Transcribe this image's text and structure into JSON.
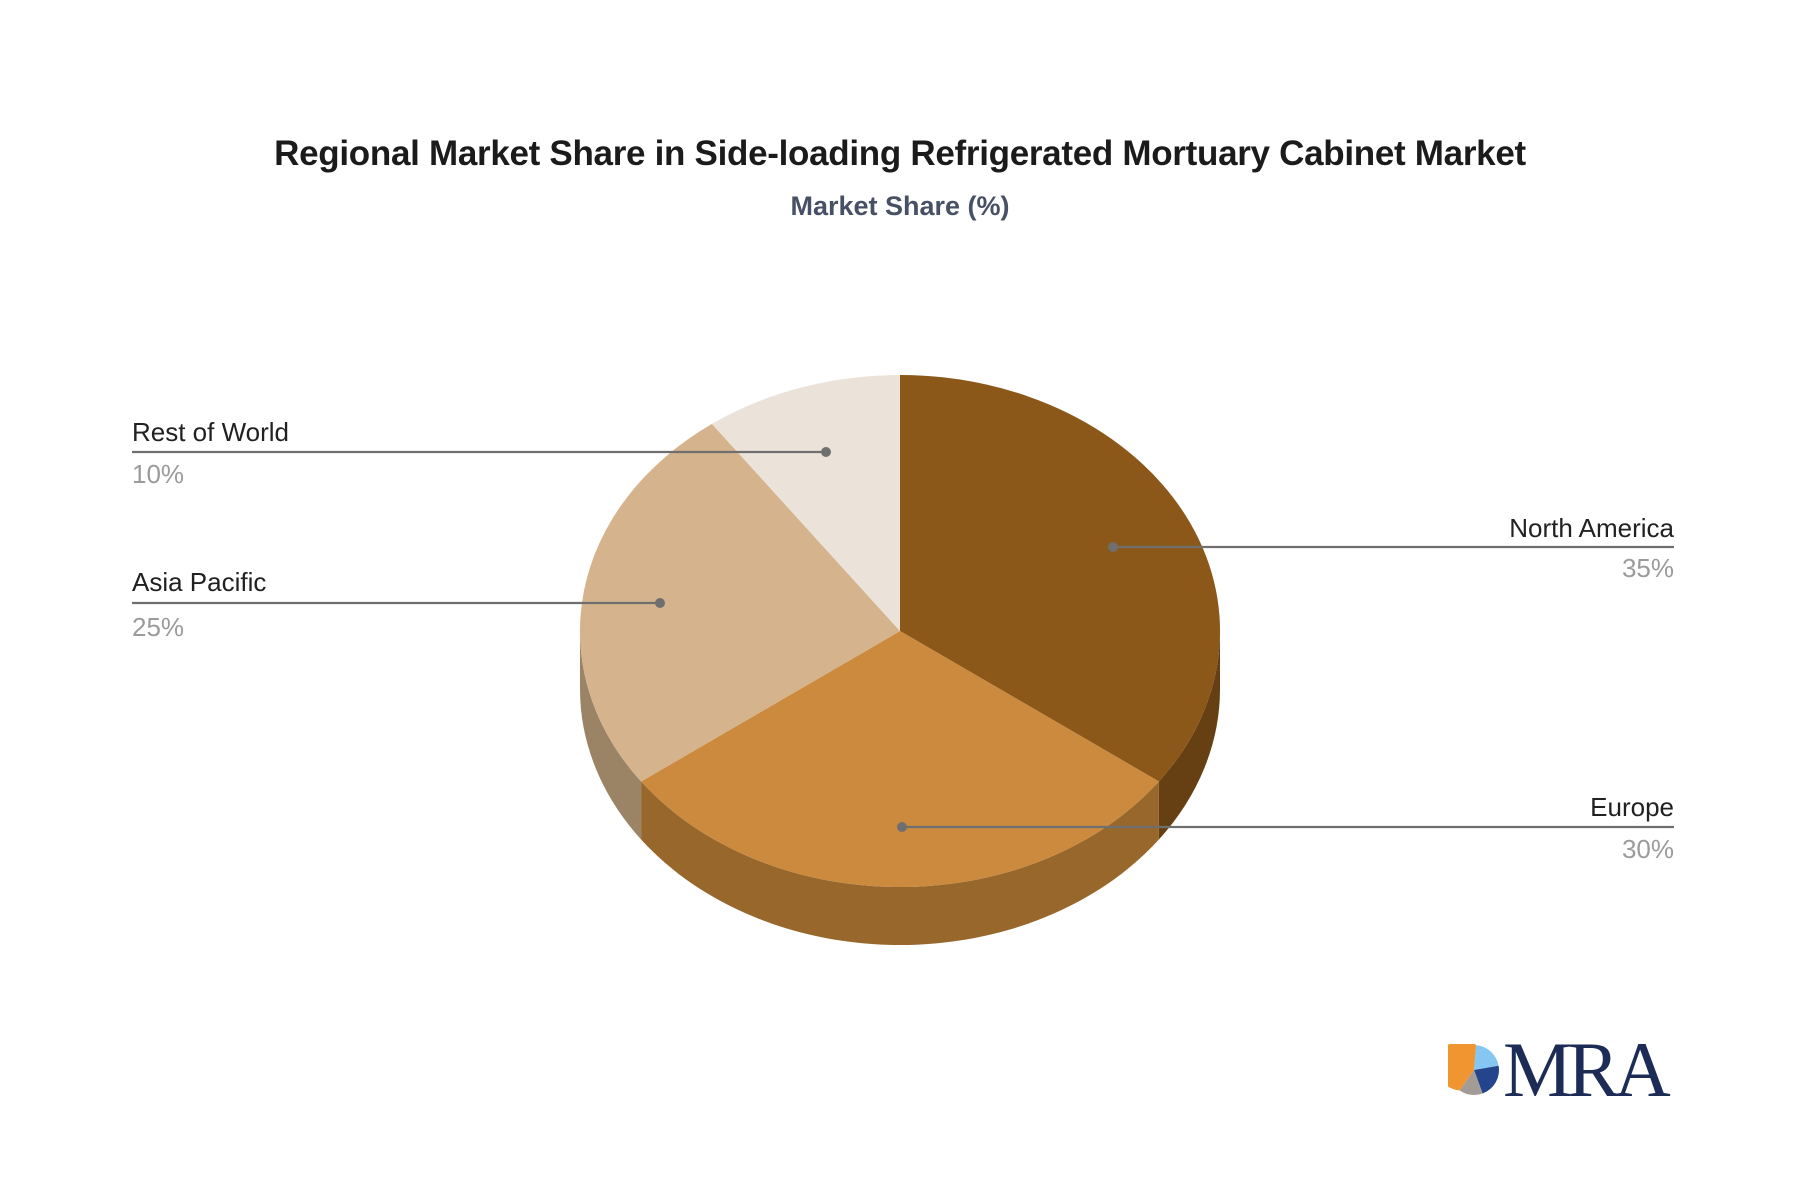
{
  "title": "Regional Market Share in Side-loading Refrigerated Mortuary Cabinet Market",
  "subtitle": "Market Share (%)",
  "chart_data": {
    "type": "pie",
    "style": "3d-extruded",
    "title": "Regional Market Share in Side-loading Refrigerated Mortuary Cabinet Market",
    "subtitle": "Market Share (%)",
    "unit": "%",
    "start_angle_deg": 0,
    "direction": "clockwise",
    "categories": [
      "North America",
      "Europe",
      "Asia Pacific",
      "Rest of World"
    ],
    "values": [
      35,
      30,
      25,
      10
    ],
    "slices": [
      {
        "label": "North America",
        "value": 35,
        "pct": "35%",
        "color": "#8C5819",
        "side_color": "#664012"
      },
      {
        "label": "Europe",
        "value": 30,
        "pct": "30%",
        "color": "#CB8A3E",
        "side_color": "#97672C"
      },
      {
        "label": "Asia Pacific",
        "value": 25,
        "pct": "25%",
        "color": "#D5B48D",
        "side_color": "#9B8465"
      },
      {
        "label": "Rest of World",
        "value": 10,
        "pct": "10%",
        "color": "#EBE3DA",
        "side_color": "#BEB5A9"
      }
    ],
    "leader_line_color": "#6f6f6f",
    "label_color": "#212121",
    "value_color": "#9b9b9b",
    "legend_position": "none",
    "grid": false
  },
  "logo": {
    "text": "MRA",
    "text_color": "#1c2c57",
    "icon": {
      "orange": "#F0952F",
      "lightblue": "#85C7F2",
      "navy": "#24458C",
      "gray": "#A39C96"
    }
  }
}
